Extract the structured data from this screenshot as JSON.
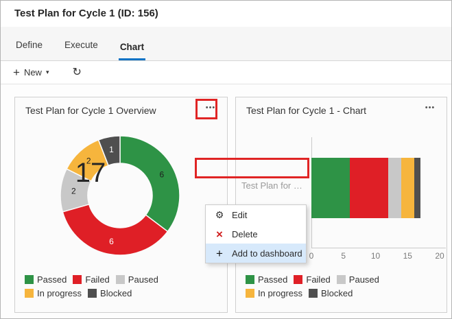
{
  "window": {
    "title": "Test Plan for Cycle 1 (ID: 156)"
  },
  "tabs": [
    {
      "label": "Define",
      "active": false
    },
    {
      "label": "Execute",
      "active": false
    },
    {
      "label": "Chart",
      "active": true
    }
  ],
  "toolbar": {
    "new_label": "New",
    "plus_glyph": "+",
    "caret_glyph": "▾",
    "refresh_glyph": "↻"
  },
  "colors": {
    "accent_blue": "#1173c5",
    "callout_red": "#e02424",
    "menu_highlight": "#d7e9fb",
    "passed_green": "#2e9346",
    "failed_red": "#df1f26",
    "paused_gray": "#c8c8c8",
    "inprogress_yellow": "#f6b53d",
    "blocked_dark": "#4f4f4f"
  },
  "cards": [
    {
      "title": "Test Plan for Cycle 1 Overview",
      "menu_glyph": "•••"
    },
    {
      "title": "Test Plan for Cycle 1 - Chart",
      "menu_glyph": "•••"
    }
  ],
  "context_menu": {
    "items": [
      {
        "label": "Edit",
        "icon": "gear"
      },
      {
        "label": "Delete",
        "icon": "x"
      },
      {
        "label": "Add to dashboard",
        "icon": "plus",
        "highlighted": true
      }
    ]
  },
  "chart_data": [
    {
      "type": "pie",
      "subtype": "donut",
      "title": "Test Plan for Cycle 1 Overview",
      "center_total": "17",
      "slices": [
        {
          "label": "Passed",
          "value": 6,
          "color": "#2e9346",
          "text_color": "#1d1d1d"
        },
        {
          "label": "Failed",
          "value": 6,
          "color": "#df1f26",
          "text_color": "#ffffff"
        },
        {
          "label": "Paused",
          "value": 2,
          "color": "#c8c8c8",
          "text_color": "#1d1d1d"
        },
        {
          "label": "In progress",
          "value": 2,
          "color": "#f6b53d",
          "text_color": "#1d1d1d"
        },
        {
          "label": "Blocked",
          "value": 1,
          "color": "#4f4f4f",
          "text_color": "#ffffff"
        }
      ],
      "legend_position": "bottom"
    },
    {
      "type": "bar",
      "orientation": "horizontal-stacked",
      "title": "Test Plan for Cycle 1 - Chart",
      "categories": [
        "Test Plan for C…"
      ],
      "series": [
        {
          "name": "Passed",
          "values": [
            6
          ],
          "color": "#2e9346"
        },
        {
          "name": "Failed",
          "values": [
            6
          ],
          "color": "#df1f26"
        },
        {
          "name": "Paused",
          "values": [
            2
          ],
          "color": "#c8c8c8"
        },
        {
          "name": "In progress",
          "values": [
            2
          ],
          "color": "#f6b53d"
        },
        {
          "name": "Blocked",
          "values": [
            1
          ],
          "color": "#4f4f4f"
        }
      ],
      "xlim": [
        0,
        20
      ],
      "xticks": [
        0,
        5,
        10,
        15,
        20
      ],
      "grid": false,
      "legend_position": "bottom"
    }
  ],
  "legend_items": [
    {
      "label": "Passed",
      "color": "#2e9346"
    },
    {
      "label": "Failed",
      "color": "#df1f26"
    },
    {
      "label": "Paused",
      "color": "#c8c8c8"
    },
    {
      "label": "In progress",
      "color": "#f6b53d"
    },
    {
      "label": "Blocked",
      "color": "#4f4f4f"
    }
  ]
}
